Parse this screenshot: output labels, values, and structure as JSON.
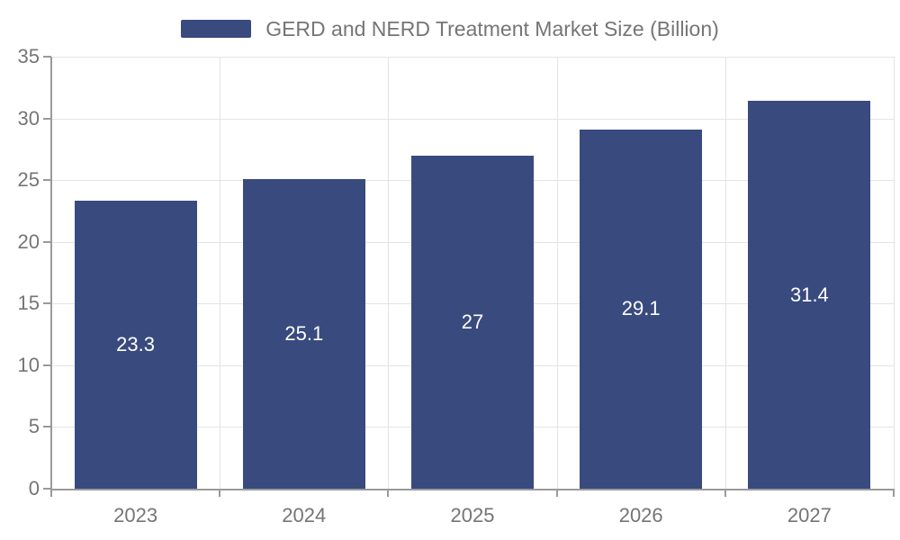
{
  "chart_data": {
    "type": "bar",
    "title": "GERD and NERD Treatment Market Size (Billion)",
    "legend_position": "top",
    "categories": [
      "2023",
      "2024",
      "2025",
      "2026",
      "2027"
    ],
    "series": [
      {
        "name": "GERD and NERD Treatment Market Size (Billion)",
        "values": [
          23.3,
          25.1,
          27,
          29.1,
          31.4
        ],
        "value_labels": [
          "23.3",
          "25.1",
          "27",
          "29.1",
          "31.4"
        ]
      }
    ],
    "xlabel": "",
    "ylabel": "",
    "ylim": [
      0,
      35
    ],
    "yticks": [
      0,
      5,
      10,
      15,
      20,
      25,
      30,
      35
    ],
    "grid": true,
    "colors": {
      "bar": "#394A7E",
      "grid_line": "#E4E4E7",
      "axis_line": "#9A9A9D",
      "tick_label": "#757578",
      "value_label": "#FFFFFF"
    }
  }
}
